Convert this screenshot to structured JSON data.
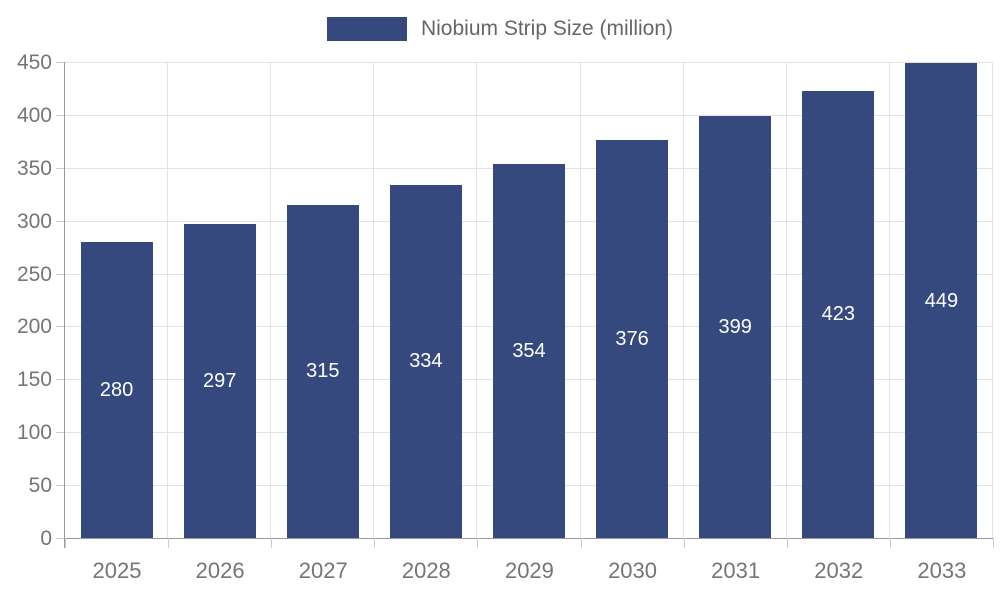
{
  "chart_data": {
    "type": "bar",
    "title": "Niobium Strip Size (million)",
    "categories": [
      "2025",
      "2026",
      "2027",
      "2028",
      "2029",
      "2030",
      "2031",
      "2032",
      "2033"
    ],
    "series": [
      {
        "name": "Niobium Strip Size (million)",
        "values": [
          280,
          297,
          315,
          334,
          354,
          376,
          399,
          423,
          449
        ]
      }
    ],
    "values": [
      280,
      297,
      315,
      334,
      354,
      376,
      399,
      423,
      449
    ],
    "value_labels": [
      "280",
      "297",
      "315",
      "334",
      "354",
      "376",
      "399",
      "423",
      "449"
    ],
    "xlabel": "",
    "ylabel": "",
    "ylim": [
      0,
      450
    ],
    "ytick_step": 50,
    "ytick_labels": [
      "0",
      "50",
      "100",
      "150",
      "200",
      "250",
      "300",
      "350",
      "400",
      "450"
    ],
    "grid": true,
    "legend_position": "top-center",
    "colors": {
      "bar": "#36497F",
      "value_label": "#FFFFFF",
      "axis_line": "#999999",
      "gridline": "#E3E3E3",
      "tick": "#CCCCCC",
      "tick_label": "#757575",
      "legend_text": "#666666",
      "background": "#FFFFFF"
    }
  }
}
